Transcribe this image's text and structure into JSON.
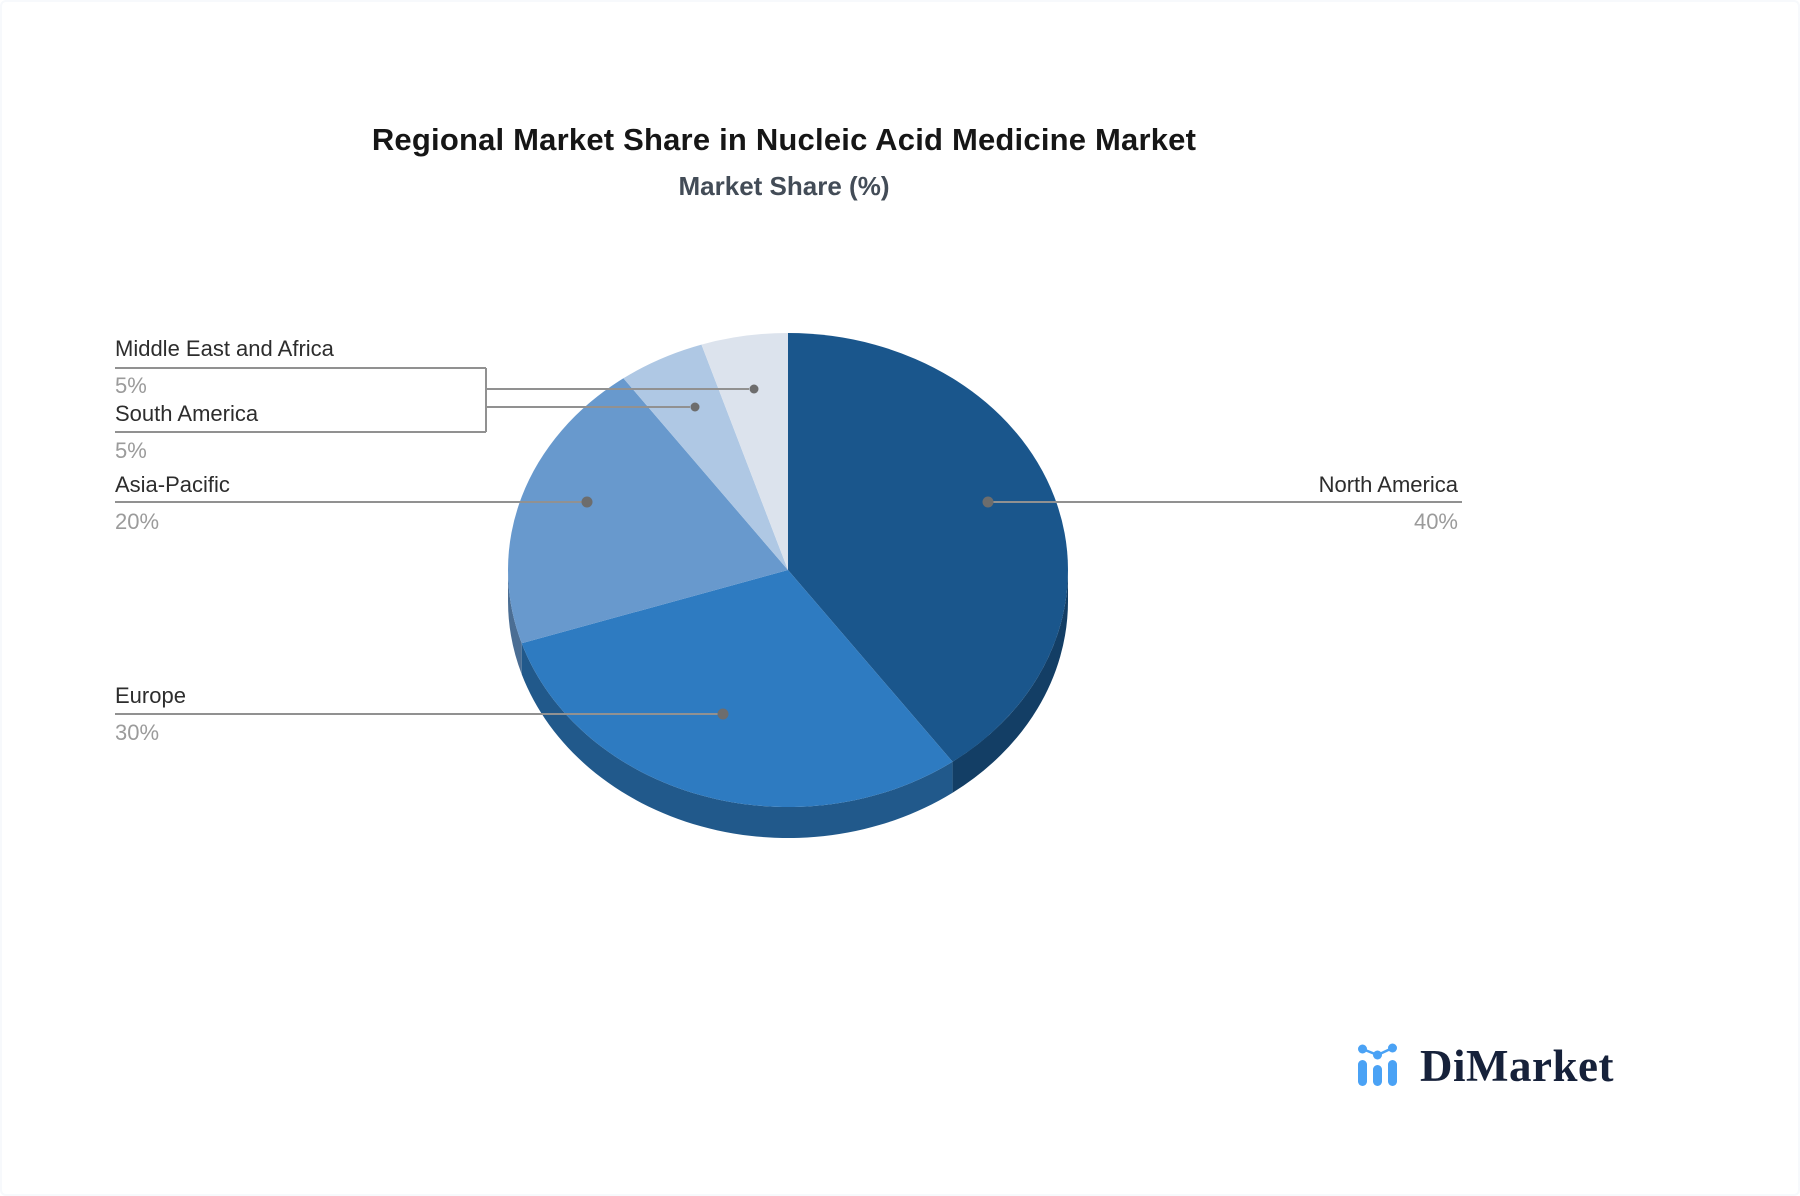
{
  "header": {
    "title": "Regional Market Share in Nucleic Acid Medicine Market",
    "subtitle": "Market Share (%)"
  },
  "chart_data": {
    "type": "pie",
    "title": "Regional Market Share in Nucleic Acid Medicine Market",
    "subtitle": "Market Share (%)",
    "unit": "%",
    "style": "3d",
    "start_angle_deg": 0,
    "direction": "clockwise",
    "legend_position": "callout-labels",
    "slices": [
      {
        "label": "North America",
        "value": 40,
        "display": "40%",
        "color": "#1A568C"
      },
      {
        "label": "Europe",
        "value": 30,
        "display": "30%",
        "color": "#2E7BC1"
      },
      {
        "label": "Asia-Pacific",
        "value": 20,
        "display": "20%",
        "color": "#6899CD"
      },
      {
        "label": "South America",
        "value": 5,
        "display": "5%",
        "color": "#AFC8E4"
      },
      {
        "label": "Middle East and Africa",
        "value": 5,
        "display": "5%",
        "color": "#DCE3ED"
      }
    ]
  },
  "branding": {
    "logo_text": "DiMarket",
    "logo_icon": "bar-chart-icon",
    "icon_color": "#4AA2F5",
    "text_color": "#16213a"
  },
  "style_tokens": {
    "leader_line_color": "#919191",
    "leader_dot_color": "#6d6d6d",
    "value_text_color": "#9b9b9b",
    "label_text_color": "#2d2d2d"
  }
}
